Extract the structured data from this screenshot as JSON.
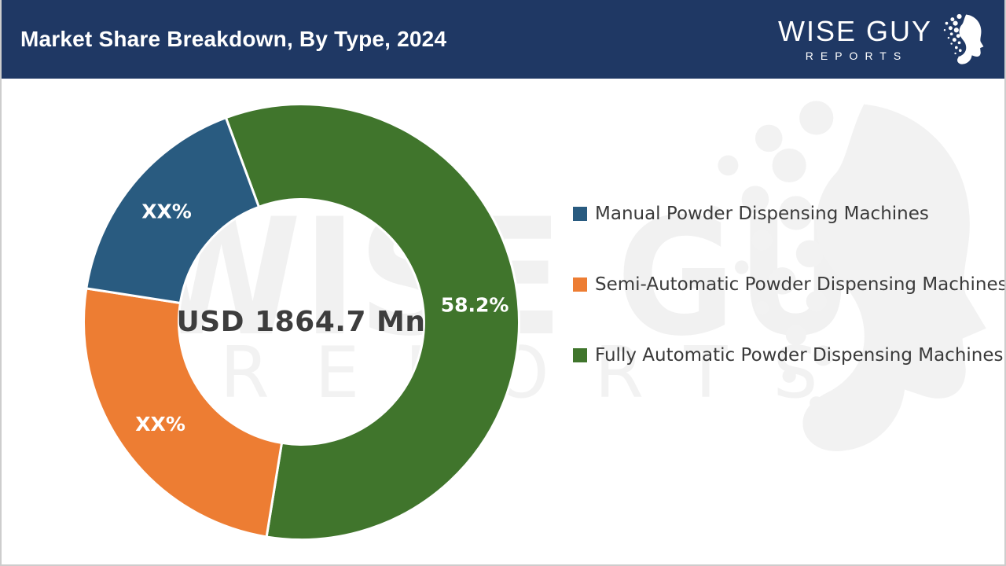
{
  "header": {
    "title": "Market Share Breakdown, By Type, 2024",
    "logo": {
      "line1": "WISE GUY",
      "line2": "REPORTS"
    }
  },
  "watermark": {
    "line1": "WISE GUY",
    "line2": "REPORTS"
  },
  "chart_data": {
    "type": "donut",
    "title": "Market Share Breakdown, By Type, 2024",
    "center_label": "USD 1864.7 Mn",
    "start_angle_deg": -20.3,
    "inner_radius_ratio": 0.563,
    "label_radius_ratio": 0.8,
    "segments": [
      {
        "id": "fully-automatic",
        "name": "Fully Automatic Powder Dispensing Machines",
        "value": 58.2,
        "label": "58.2%",
        "color": "#40752c"
      },
      {
        "id": "semi-automatic",
        "name": "Semi-Automatic Powder Dispensing Machines",
        "value": 24.9,
        "label": "XX%",
        "color": "#ed7d33"
      },
      {
        "id": "manual",
        "name": "Manual Powder Dispensing Machines",
        "value": 16.9,
        "label": "XX%",
        "color": "#295b80"
      }
    ],
    "legend_position": "right"
  },
  "legend": {
    "items": [
      {
        "label": "Manual Powder Dispensing Machines",
        "color": "#295b80"
      },
      {
        "label": "Semi-Automatic Powder Dispensing Machines",
        "color": "#ed7d33"
      },
      {
        "label": "Fully Automatic Powder Dispensing Machines",
        "color": "#40752c"
      }
    ]
  },
  "colors": {
    "header_bg": "#1f3864",
    "border": "#cdcdcd",
    "watermark": "#f1f1f1"
  }
}
